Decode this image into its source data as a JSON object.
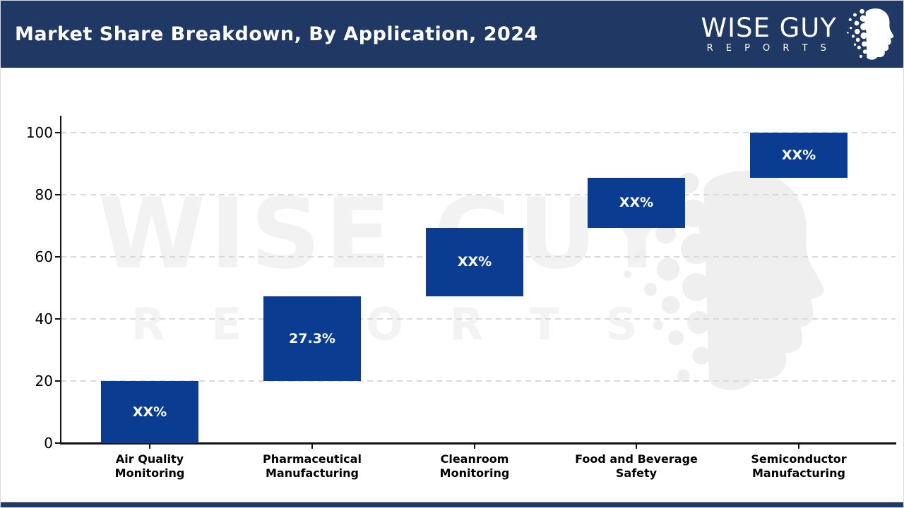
{
  "header": {
    "title": "Market Share Breakdown, By Application, 2024",
    "bg_color": "#1f3864",
    "logo": {
      "line1": "WISE GUY",
      "line2": "R E P O R T S",
      "face_icon": "dotted-head-profile"
    }
  },
  "watermark": {
    "line1": "WISE GUY",
    "line2": "R E P O R T S",
    "face_icon": "dotted-head-profile",
    "color": "#f2f2f2"
  },
  "chart_data": {
    "type": "bar",
    "subtype": "waterfall",
    "title": "Market Share Breakdown, By Application, 2024",
    "categories": [
      "Air Quality\nMonitoring",
      "Pharmaceutical\nManufacturing",
      "Cleanroom\nMonitoring",
      "Food and Beverage\nSafety",
      "Semiconductor\nManufacturing"
    ],
    "series": [
      {
        "name": "Market Share (%)",
        "segments": [
          {
            "base": 0,
            "top": 20,
            "label": "XX%"
          },
          {
            "base": 20,
            "top": 47.3,
            "label": "27.3%"
          },
          {
            "base": 47.3,
            "top": 69.3,
            "label": "XX%"
          },
          {
            "base": 69.3,
            "top": 85.5,
            "label": "XX%"
          },
          {
            "base": 85.5,
            "top": 100,
            "label": "XX%"
          }
        ]
      }
    ],
    "ylim": [
      0,
      100
    ],
    "yticks": [
      0,
      20,
      40,
      60,
      80,
      100
    ],
    "grid": "horizontal-dashed",
    "gridline_color": "#dadada",
    "bar_color": "#0a3d91",
    "bar_label_color": "#ffffff",
    "xlabel": "",
    "ylabel": ""
  },
  "footer": {
    "bg_color": "#1f3864"
  }
}
